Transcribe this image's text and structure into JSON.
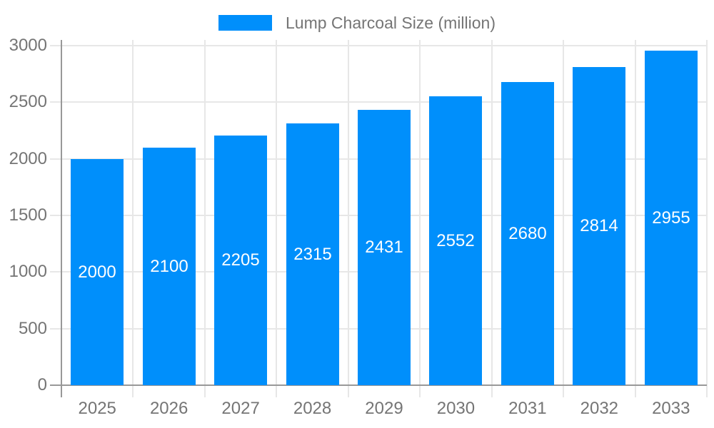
{
  "chart_data": {
    "type": "bar",
    "title": "Lump Charcoal Size (million)",
    "series_name": "Lump Charcoal Size (million)",
    "categories": [
      "2025",
      "2026",
      "2027",
      "2028",
      "2029",
      "2030",
      "2031",
      "2032",
      "2033"
    ],
    "values": [
      2000,
      2100,
      2205,
      2315,
      2431,
      2552,
      2680,
      2814,
      2955
    ],
    "xlabel": "",
    "ylabel": "",
    "ylim": [
      0,
      3000
    ],
    "y_ticks": [
      0,
      500,
      1000,
      1500,
      2000,
      2500,
      3000
    ],
    "grid": true,
    "legend_position": "top",
    "colors": {
      "bar": "#008FFB",
      "bar_label": "#ffffff",
      "axis_text": "#757575",
      "legend_text": "#757575",
      "grid_line": "#e7e7e7",
      "axis_line": "#989898"
    }
  }
}
